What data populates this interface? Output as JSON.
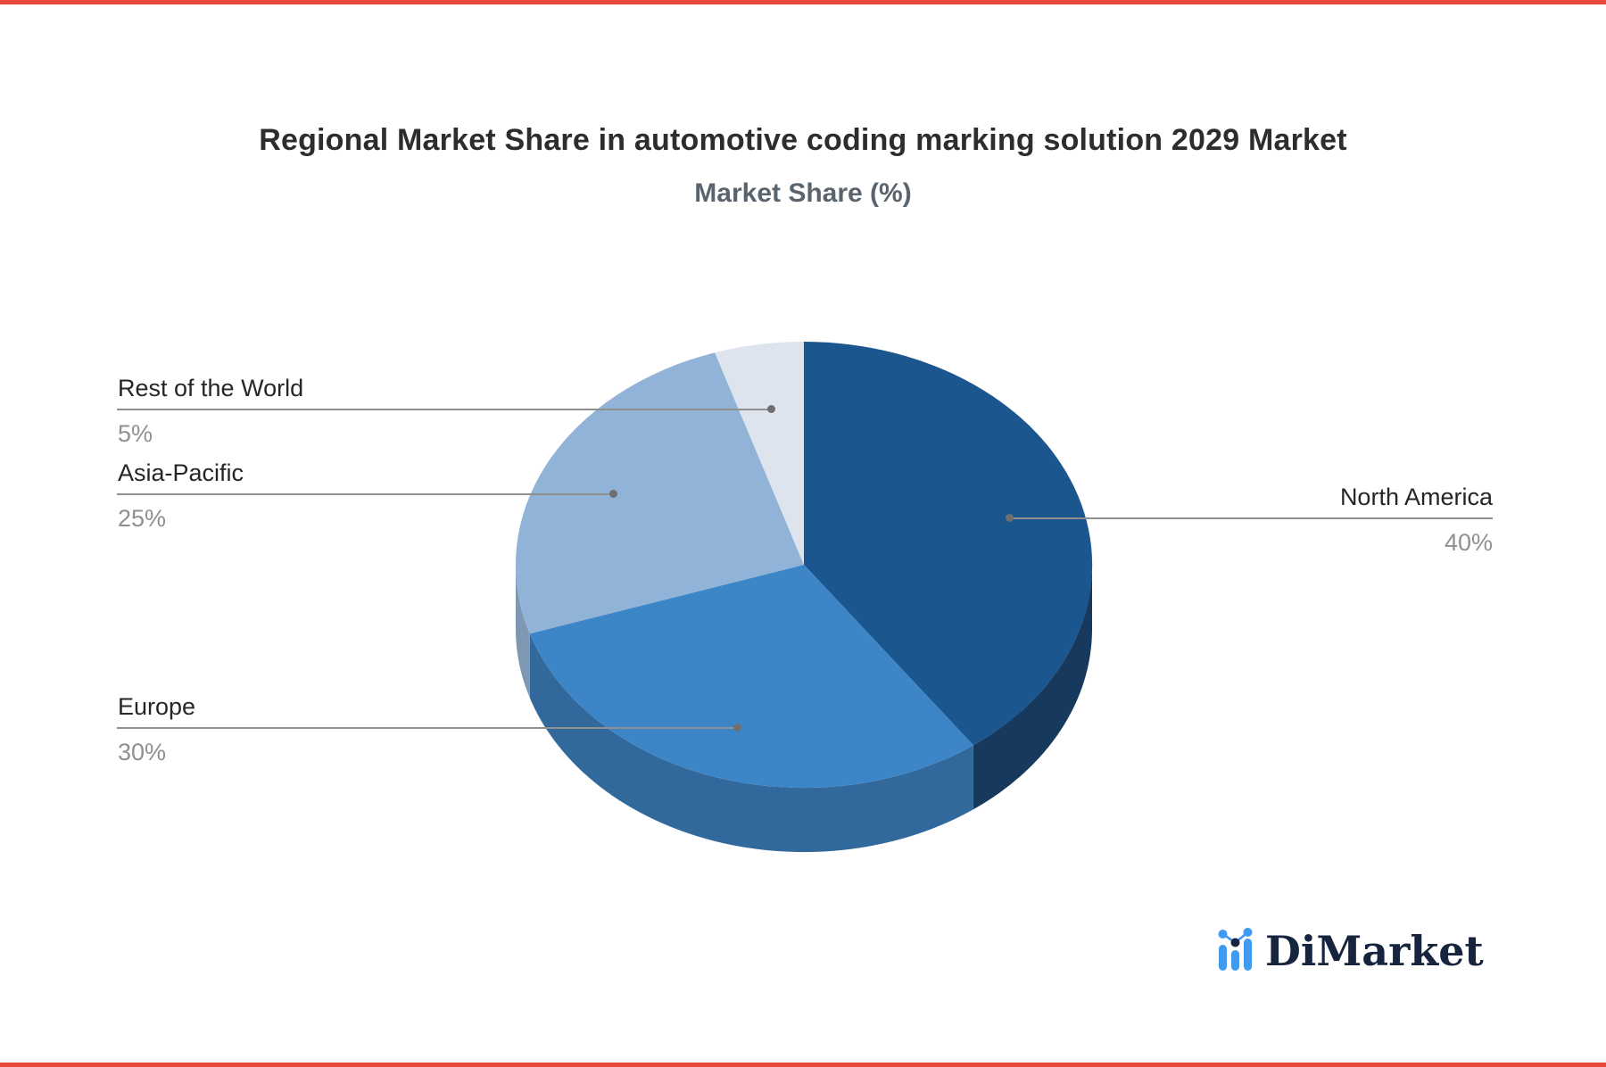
{
  "page": {
    "accent_line_color": "#e8473b",
    "background_color": "#ffffff"
  },
  "chart": {
    "title": "Regional Market Share in automotive coding marking solution 2029 Market",
    "subtitle": "Market Share (%)"
  },
  "chart_data": {
    "type": "pie",
    "title": "Regional Market Share in automotive coding marking solution 2029 Market",
    "subtitle": "Market Share (%)",
    "unit": "%",
    "style": "3d-pie",
    "start_angle_deg": 0,
    "direction": "clockwise",
    "legend_position": "none",
    "labels": "leader-line-callouts",
    "slices": [
      {
        "label": "North America",
        "value": 40,
        "value_label": "40%",
        "color": "#1b568e",
        "side_color": "#17395d"
      },
      {
        "label": "Europe",
        "value": 30,
        "value_label": "30%",
        "color": "#3c86c8",
        "side_color": "#32699c"
      },
      {
        "label": "Asia-Pacific",
        "value": 25,
        "value_label": "25%",
        "color": "#91b3d7",
        "side_color": "#7e98b4"
      },
      {
        "label": "Rest of the World",
        "value": 5,
        "value_label": "5%",
        "color": "#dde4ee",
        "side_color": "#b5c2d2"
      }
    ]
  },
  "branding": {
    "logo_text": "DiMarket",
    "logo_icon": "bar-chart-trend-icon",
    "logo_color": "#16243d",
    "logo_accent": "#3f9af0"
  }
}
